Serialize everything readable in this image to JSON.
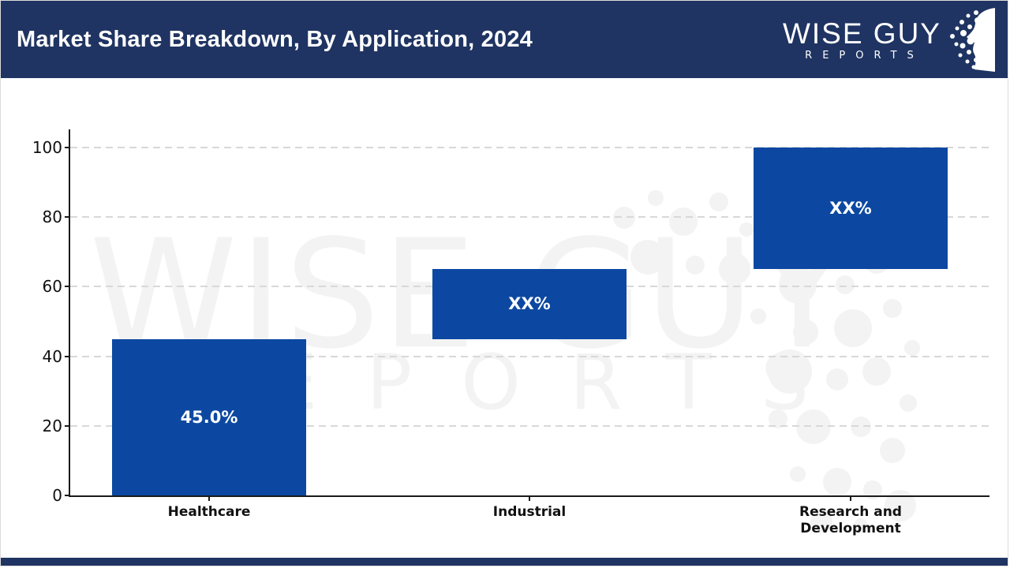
{
  "header": {
    "title": "Market Share Breakdown, By Application, 2024",
    "brand": {
      "line1": "WISE GUY",
      "line2": "REPORTS"
    },
    "brand_icon": "dotted-head-profile-icon"
  },
  "watermark": {
    "line1": "WISE GUY",
    "line2": "REPORTS",
    "icon": "dotted-head-profile-watermark"
  },
  "colors": {
    "header_bg": "#1f3462",
    "footer_bg": "#1f3462",
    "bar": "#0c48a1",
    "bar_label": "#ffffff",
    "axis": "#1a1a1a",
    "gridline": "#d8d8d8",
    "watermark": "#f3f3f3"
  },
  "chart_data": {
    "type": "bar",
    "subtype": "floating-segment-waterfall",
    "title": "Market Share Breakdown, By Application, 2024",
    "categories": [
      "Healthcare",
      "Industrial",
      "Research and Development"
    ],
    "series": [
      {
        "name": "Market Share (%)",
        "segments": [
          {
            "category": "Healthcare",
            "start": 0,
            "end": 45,
            "label": "45.0%"
          },
          {
            "category": "Industrial",
            "start": 45,
            "end": 65,
            "label": "XX%"
          },
          {
            "category": "Research and Development",
            "start": 65,
            "end": 100,
            "label": "XX%"
          }
        ]
      }
    ],
    "xlabel": "",
    "ylabel": "",
    "ylim": [
      0,
      100
    ],
    "yticks": [
      0,
      20,
      40,
      60,
      80,
      100
    ],
    "grid": "horizontal-dashed",
    "legend": "none"
  }
}
